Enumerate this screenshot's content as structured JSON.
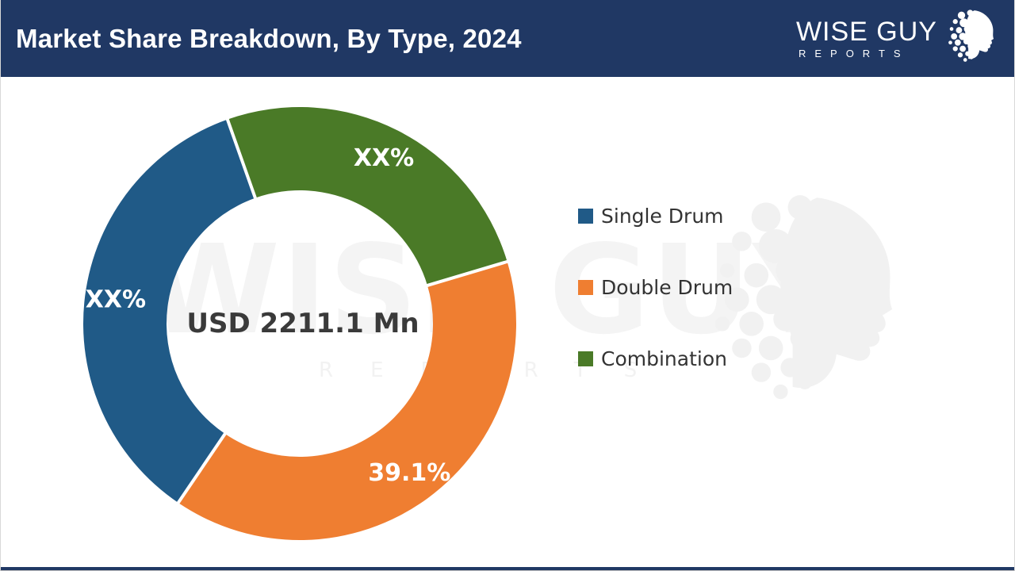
{
  "header": {
    "title": "Market Share Breakdown, By Type, 2024",
    "bg_color": "#203864"
  },
  "logo": {
    "line1": "WISE GUY",
    "line2": "REPORTS"
  },
  "watermark": {
    "line1": "WISE GUY",
    "line2": "REPORTS"
  },
  "chart_data": {
    "type": "donut",
    "title": "Market Share Breakdown, By Type, 2024",
    "center_label": "USD 2211.1 Mn",
    "legend_position": "right",
    "segments": [
      {
        "name": "Single Drum",
        "label": "XX%",
        "value_pct": 35.1,
        "color": "#205a87"
      },
      {
        "name": "Double Drum",
        "label": "39.1%",
        "value_pct": 39.1,
        "color": "#ef7e31"
      },
      {
        "name": "Combination",
        "label": "XX%",
        "value_pct": 25.8,
        "color": "#4a7a27"
      }
    ],
    "draw": {
      "start_angle_deg": 109.5,
      "clockwise": true,
      "order": [
        "Combination",
        "Double Drum",
        "Single Drum"
      ]
    }
  }
}
